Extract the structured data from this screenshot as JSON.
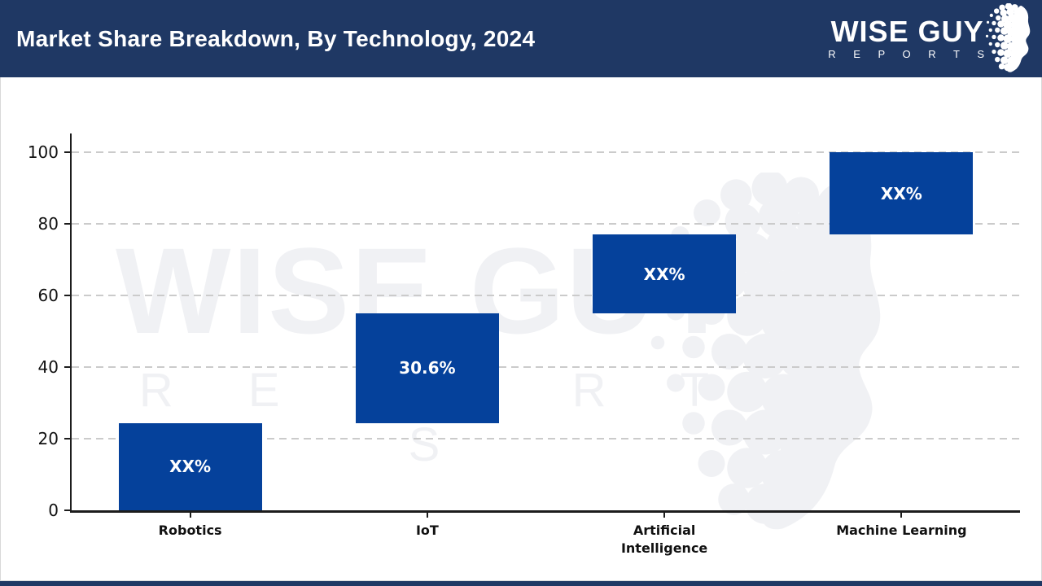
{
  "header": {
    "title": "Market Share Breakdown, By Technology, 2024",
    "logo": {
      "line1": "WISE GUY",
      "line2": "R E P O R T S"
    }
  },
  "watermark": {
    "line1": "WISE GUY",
    "line2": "R E P O R T S"
  },
  "chart_data": {
    "type": "bar",
    "subtype": "waterfall",
    "title": "Market Share Breakdown, By Technology, 2024",
    "categories": [
      "Robotics",
      "IoT",
      "Artificial Intelligence",
      "Machine Learning"
    ],
    "tick_labels": [
      "Robotics",
      "IoT",
      "Artificial\nIntelligence",
      "Machine Learning"
    ],
    "segments": [
      {
        "category": "Robotics",
        "start": 0,
        "end": 24.4,
        "label": "XX%"
      },
      {
        "category": "IoT",
        "start": 24.4,
        "end": 55.0,
        "label": "30.6%"
      },
      {
        "category": "Artificial Intelligence",
        "start": 55.0,
        "end": 77.0,
        "label": "XX%"
      },
      {
        "category": "Machine Learning",
        "start": 77.0,
        "end": 100.0,
        "label": "XX%"
      }
    ],
    "y_ticks": [
      0,
      20,
      40,
      60,
      80,
      100
    ],
    "ylim": [
      0,
      100
    ],
    "grid": "dashed-horizontal",
    "legend": "none",
    "bar_color": "#05419b",
    "bar_label_color": "#ffffff",
    "header_color": "#1f3864",
    "watermark_color": "#f0f1f4"
  }
}
